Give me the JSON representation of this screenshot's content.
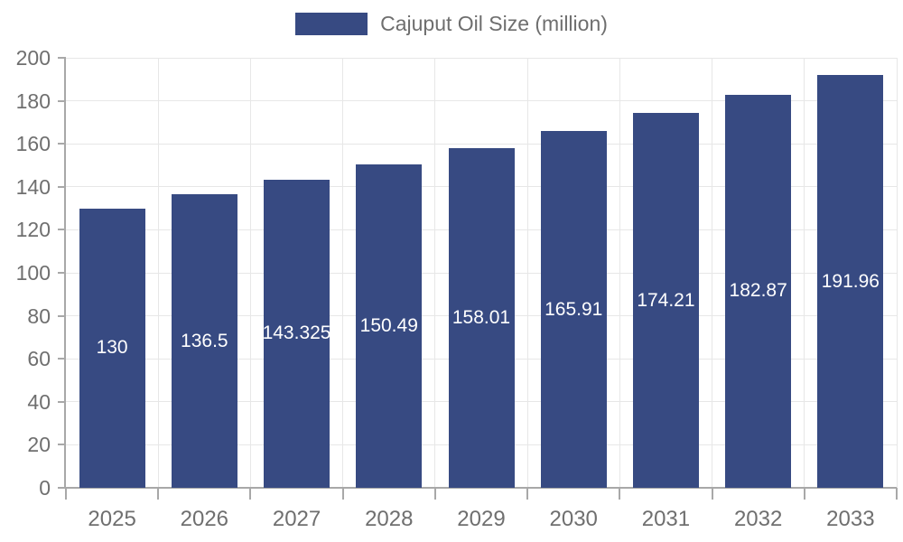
{
  "chart": {
    "legend": {
      "label": "Cajuput Oil Size (million)"
    }
  },
  "chart_data": {
    "type": "bar",
    "title": "Cajuput Oil Size (million)",
    "xlabel": "",
    "ylabel": "",
    "categories": [
      "2025",
      "2026",
      "2027",
      "2028",
      "2029",
      "2030",
      "2031",
      "2032",
      "2033"
    ],
    "values": [
      130,
      136.5,
      143.325,
      150.49,
      158.01,
      165.91,
      174.21,
      182.87,
      191.96
    ],
    "bar_labels": [
      "130",
      "136.5",
      "143.325",
      "150.49",
      "158.01",
      "165.91",
      "174.21",
      "182.87",
      "191.96"
    ],
    "ylim": [
      0,
      200
    ],
    "yticks": [
      0,
      20,
      40,
      60,
      80,
      100,
      120,
      140,
      160,
      180,
      200
    ],
    "grid": true,
    "legend_position": "top",
    "colors": {
      "bar": "#374A82",
      "grid": "#e7e7e7",
      "axis": "#a8a8a8",
      "tick_text": "#6f6f6f",
      "bar_label_text": "#ffffff",
      "legend_text": "#6e6e6e"
    }
  }
}
